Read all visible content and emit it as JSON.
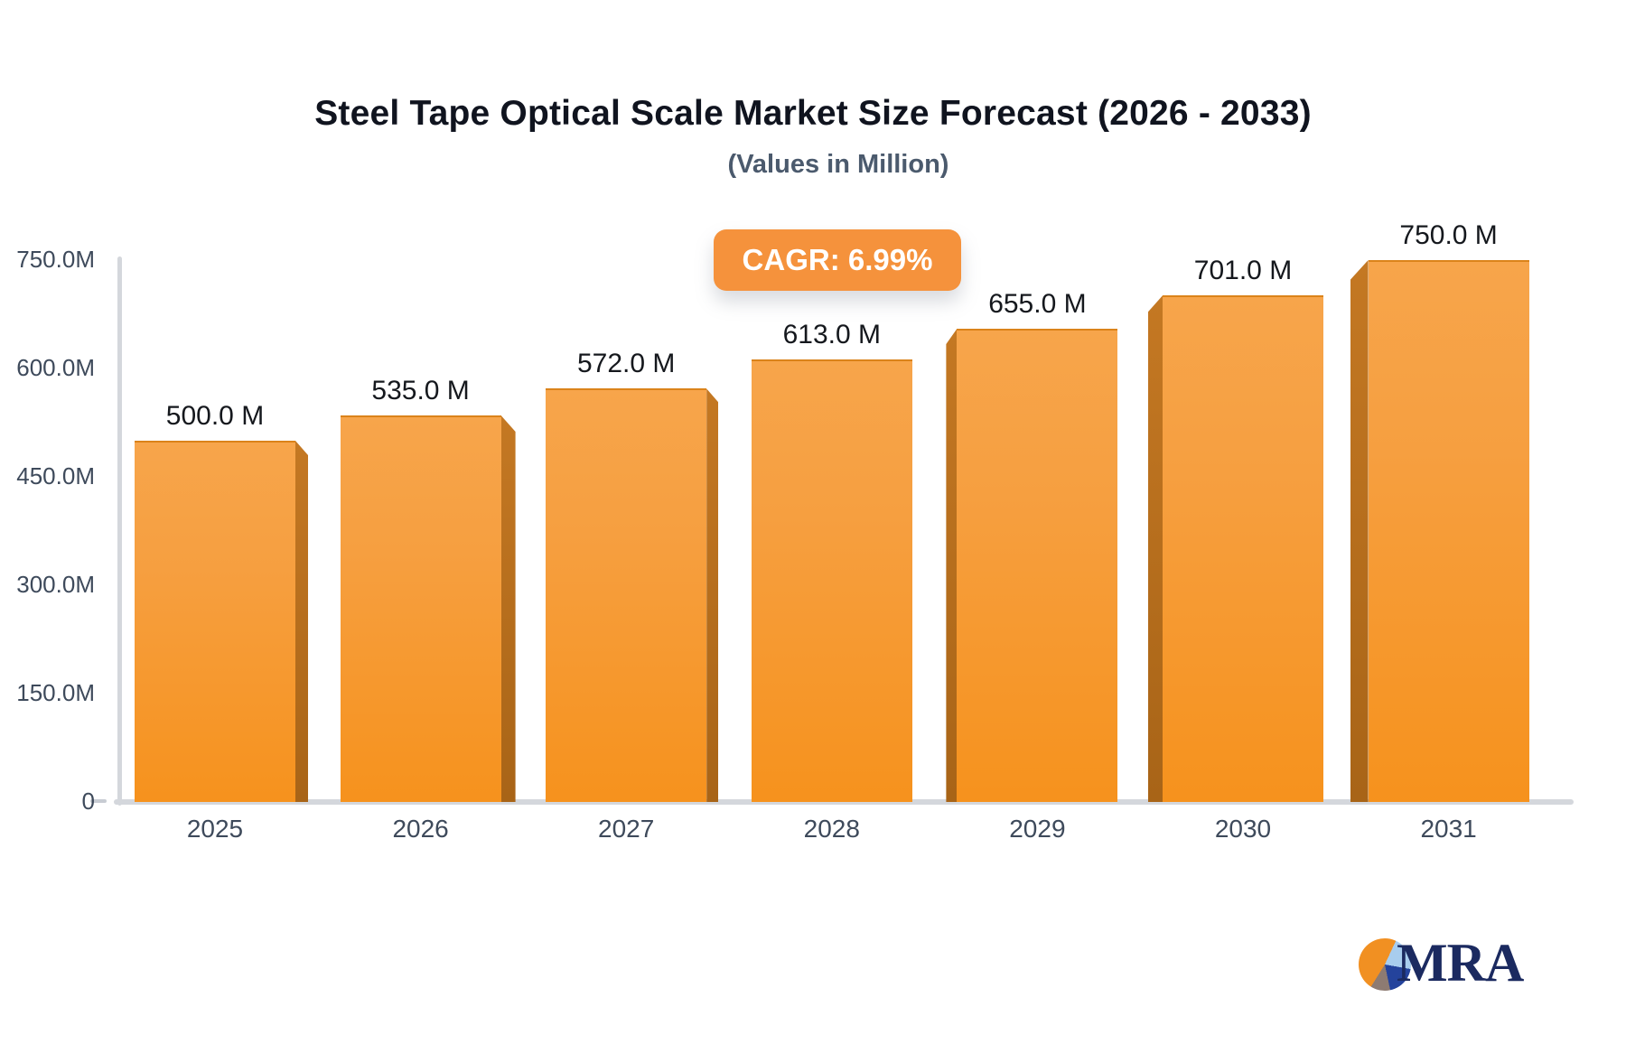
{
  "header": {
    "title": "Steel Tape Optical Scale Market Size Forecast (2026 - 2033)",
    "subtitle": "(Values in Million)"
  },
  "badge": {
    "label": "CAGR: 6.99%",
    "bg_color": "#f5923c",
    "text_color": "#ffffff"
  },
  "chart_data": {
    "type": "bar",
    "title": "Steel Tape Optical Scale Market Size Forecast (2026 - 2033)",
    "subtitle": "(Values in Million)",
    "unit": "Million",
    "cagr": "6.99%",
    "categories": [
      "2025",
      "2026",
      "2027",
      "2028",
      "2029",
      "2030",
      "2031"
    ],
    "values": [
      500,
      535,
      572,
      613,
      655,
      701,
      750
    ],
    "value_labels": [
      "500.0 M",
      "535.0 M",
      "572.0 M",
      "613.0 M",
      "655.0 M",
      "701.0 M",
      "750.0 M"
    ],
    "y_ticks": [
      "0",
      "150.0M",
      "300.0M",
      "450.0M",
      "600.0M",
      "750.0M"
    ],
    "y_tick_values": [
      0,
      150,
      300,
      450,
      600,
      750
    ],
    "ylim": [
      0,
      750
    ],
    "grid": false,
    "legend": false,
    "bar_color_top": "#f7a54b",
    "bar_color_bottom": "#f6921d",
    "bar_side_color": "#b06a1d",
    "axis_color": "#d4d7dc",
    "label_color": "#3e4a5b"
  },
  "logo": {
    "text": "MRA",
    "pie_colors": [
      "#f19022",
      "#a8cdee",
      "#24439c",
      "#8d7b72"
    ],
    "text_color": "#1b2a60"
  }
}
